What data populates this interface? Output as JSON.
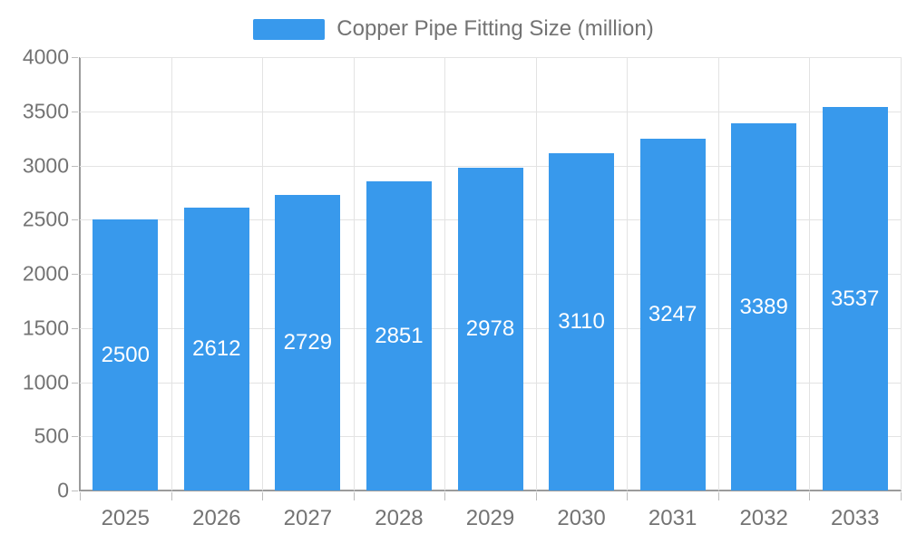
{
  "chart_data": {
    "type": "bar",
    "title": "Copper Pipe Fitting Size (million)",
    "categories": [
      "2025",
      "2026",
      "2027",
      "2028",
      "2029",
      "2030",
      "2031",
      "2032",
      "2033"
    ],
    "values": [
      2500,
      2612,
      2729,
      2851,
      2978,
      3110,
      3247,
      3389,
      3537
    ],
    "series_name": "Copper Pipe Fitting Size (million)",
    "xlabel": "",
    "ylabel": "",
    "ylim": [
      0,
      4000
    ],
    "yticks": [
      0,
      500,
      1000,
      1500,
      2000,
      2500,
      3000,
      3500,
      4000
    ],
    "grid": true,
    "legend_position": "top",
    "value_labels": "inside-center",
    "colors": {
      "bar": "#3899ec",
      "bar_value_label": "#ffffff",
      "axis_text": "#737373",
      "gridline": "#e3e3e3",
      "axis_line": "#9b9b9b",
      "background": "#ffffff"
    }
  }
}
